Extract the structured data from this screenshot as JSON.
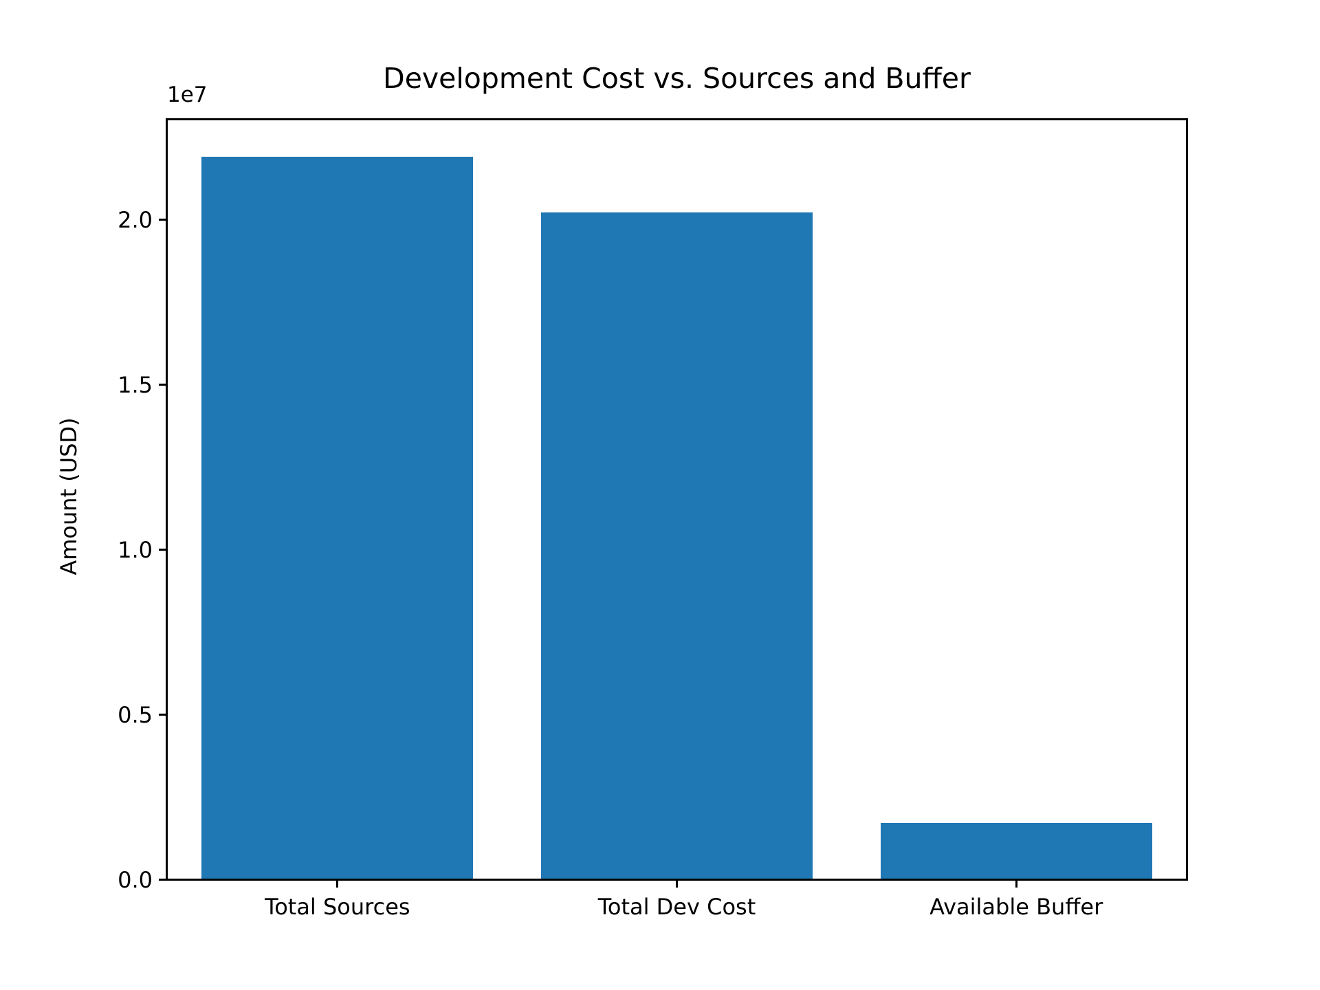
{
  "chart_data": {
    "type": "bar",
    "title": "Development Cost vs. Sources and Buffer",
    "xlabel": "",
    "ylabel": "Amount (USD)",
    "offset_text": "1e7",
    "categories": [
      "Total Sources",
      "Total Dev Cost",
      "Available Buffer"
    ],
    "values": [
      21950000,
      20250000,
      1700000
    ],
    "ylim": [
      0,
      23050000
    ],
    "yticks": [
      0,
      5000000,
      10000000,
      15000000,
      20000000
    ],
    "ytick_labels": [
      "0.0",
      "0.5",
      "1.0",
      "1.5",
      "2.0"
    ],
    "bar_color": "#1f77b4",
    "grid": false,
    "legend": null
  }
}
